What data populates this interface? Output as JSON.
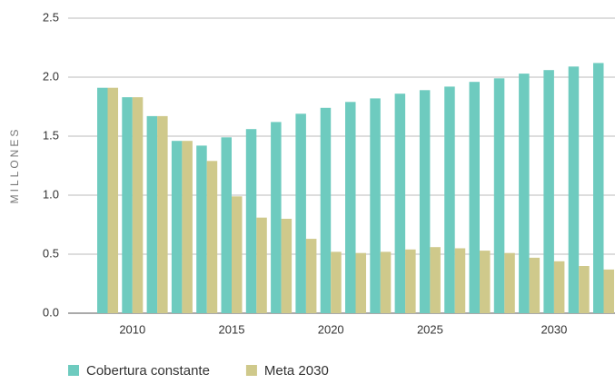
{
  "chart_data": {
    "type": "bar",
    "y_label": "MILLONES",
    "categories": [
      null,
      "2010",
      null,
      null,
      null,
      "2015",
      null,
      null,
      null,
      "2020",
      null,
      null,
      null,
      "2025",
      null,
      null,
      null,
      null,
      "2030",
      null,
      null
    ],
    "series": [
      {
        "name": "Cobertura constante",
        "color": "#6ecbbf",
        "values": [
          1.91,
          1.83,
          1.67,
          1.46,
          1.42,
          1.49,
          1.56,
          1.62,
          1.69,
          1.74,
          1.79,
          1.82,
          1.86,
          1.89,
          1.92,
          1.96,
          1.99,
          2.03,
          2.06,
          2.09,
          2.12
        ]
      },
      {
        "name": "Meta 2030",
        "color": "#cfc98b",
        "values": [
          1.91,
          1.83,
          1.67,
          1.46,
          1.29,
          0.99,
          0.81,
          0.8,
          0.63,
          0.52,
          0.51,
          0.52,
          0.54,
          0.56,
          0.55,
          0.53,
          0.51,
          0.47,
          0.44,
          0.4,
          0.37
        ]
      }
    ],
    "ylim": [
      0,
      2.5
    ],
    "yticks": [
      {
        "value": 0,
        "label": "0.0"
      },
      0.5,
      {
        "value": 1,
        "label": "1.0"
      },
      1.5,
      {
        "value": 2,
        "label": "2.0"
      },
      2.5
    ],
    "grid": true,
    "legend": "bottom"
  }
}
